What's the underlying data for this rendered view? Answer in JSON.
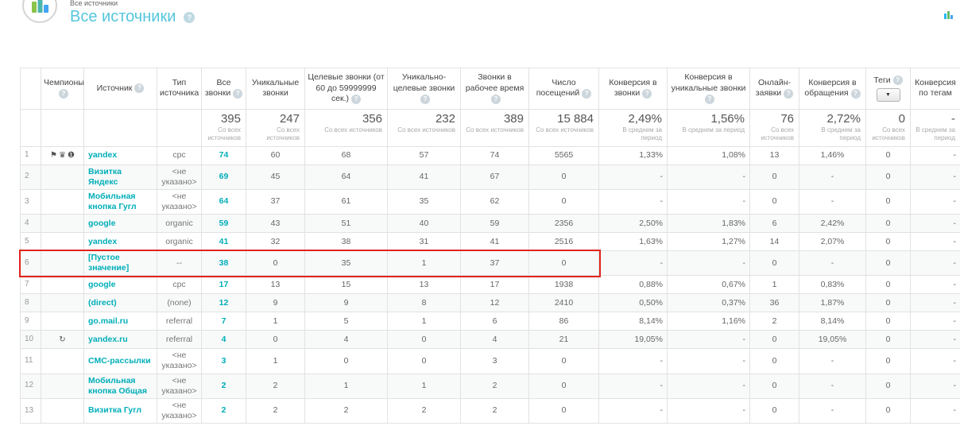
{
  "header": {
    "breadcrumb": "Все источники",
    "title": "Все источники"
  },
  "icons": {
    "help_glyph": "?",
    "dropdown_glyph": "▼",
    "glyphs": {
      "flag": "⚑",
      "crown": "♛",
      "medal-1": "❶",
      "refresh": "↻"
    }
  },
  "table": {
    "columns": [
      {
        "key": "num",
        "label": "",
        "help": false,
        "align": "left"
      },
      {
        "key": "champions",
        "label": "Чемпионы",
        "help": true,
        "align": "center"
      },
      {
        "key": "source",
        "label": "Источник",
        "help": true,
        "align": "left"
      },
      {
        "key": "source-type",
        "label": "Тип источника",
        "help": false,
        "align": "center"
      },
      {
        "key": "all-calls",
        "label": "Все звонки",
        "help": true,
        "align": "center",
        "link": true
      },
      {
        "key": "unique-calls",
        "label": "Уникальные звонки",
        "help": false,
        "align": "center"
      },
      {
        "key": "target-calls",
        "label": "Целевые звонки (от 60 до 59999999 сек.)",
        "help": true,
        "align": "center"
      },
      {
        "key": "unique-target-calls",
        "label": "Уникально-целевые звонки",
        "help": true,
        "align": "center"
      },
      {
        "key": "work-hours-calls",
        "label": "Звонки в рабочее время",
        "help": true,
        "align": "center"
      },
      {
        "key": "visits",
        "label": "Число посещений",
        "help": true,
        "align": "center"
      },
      {
        "key": "conversion-calls",
        "label": "Конверсия в звонки",
        "help": true,
        "align": "right"
      },
      {
        "key": "conversion-unique-calls",
        "label": "Конверсия в уникальные звонки",
        "help": true,
        "align": "right"
      },
      {
        "key": "online-requests",
        "label": "Онлайн-заявки",
        "help": true,
        "align": "center"
      },
      {
        "key": "conversion-appeals",
        "label": "Конверсия в обращения",
        "help": true,
        "align": "center"
      },
      {
        "key": "tags",
        "label": "Теги",
        "help": true,
        "dropdown": true,
        "align": "center"
      },
      {
        "key": "conversion-tags",
        "label": "Конверсия по тегам",
        "help": false,
        "align": "right"
      }
    ],
    "summary": [
      {
        "value": "",
        "sub": ""
      },
      {
        "value": "",
        "sub": ""
      },
      {
        "value": "",
        "sub": ""
      },
      {
        "value": "",
        "sub": ""
      },
      {
        "value": "395",
        "sub": "Со всех источников"
      },
      {
        "value": "247",
        "sub": "Со всех источников"
      },
      {
        "value": "356",
        "sub": "Со всех источников"
      },
      {
        "value": "232",
        "sub": "Со всех источников"
      },
      {
        "value": "389",
        "sub": "Со всех источников"
      },
      {
        "value": "15 884",
        "sub": "Со всех источников"
      },
      {
        "value": "2,49%",
        "sub": "В среднем за период"
      },
      {
        "value": "1,56%",
        "sub": "В среднем за период"
      },
      {
        "value": "76",
        "sub": "Со всех источников"
      },
      {
        "value": "2,72%",
        "sub": "В среднем за период"
      },
      {
        "value": "0",
        "sub": "Со всех источников"
      },
      {
        "value": "-",
        "sub": "В среднем за период"
      }
    ],
    "rows": [
      {
        "num": "1",
        "champions": [
          "flag",
          "crown",
          "medal-1"
        ],
        "source": "yandex",
        "type": "cpc",
        "values": [
          "74",
          "60",
          "68",
          "57",
          "74",
          "5565",
          "1,33%",
          "1,08%",
          "13",
          "1,46%",
          "0",
          "-"
        ],
        "highlighted": false
      },
      {
        "num": "2",
        "champions": [],
        "source": "Визитка Яндекс",
        "type": "<не указано>",
        "values": [
          "69",
          "45",
          "64",
          "41",
          "67",
          "0",
          "-",
          "-",
          "0",
          "-",
          "0",
          "-"
        ],
        "highlighted": false
      },
      {
        "num": "3",
        "champions": [],
        "source": "Мобильная кнопка Гугл",
        "type": "<не указано>",
        "values": [
          "64",
          "37",
          "61",
          "35",
          "62",
          "0",
          "-",
          "-",
          "0",
          "-",
          "0",
          "-"
        ],
        "highlighted": false
      },
      {
        "num": "4",
        "champions": [],
        "source": "google",
        "type": "organic",
        "values": [
          "59",
          "43",
          "51",
          "40",
          "59",
          "2356",
          "2,50%",
          "1,83%",
          "6",
          "2,42%",
          "0",
          "-"
        ],
        "highlighted": false
      },
      {
        "num": "5",
        "champions": [],
        "source": "yandex",
        "type": "organic",
        "values": [
          "41",
          "32",
          "38",
          "31",
          "41",
          "2516",
          "1,63%",
          "1,27%",
          "14",
          "2,07%",
          "0",
          "-"
        ],
        "highlighted": false
      },
      {
        "num": "6",
        "champions": [],
        "source": "[Пустое значение]",
        "type": "--",
        "values": [
          "38",
          "0",
          "35",
          "1",
          "37",
          "0",
          "-",
          "-",
          "0",
          "-",
          "0",
          "-"
        ],
        "highlighted": true
      },
      {
        "num": "7",
        "champions": [],
        "source": "google",
        "type": "cpc",
        "values": [
          "17",
          "13",
          "15",
          "13",
          "17",
          "1938",
          "0,88%",
          "0,67%",
          "1",
          "0,83%",
          "0",
          "-"
        ],
        "highlighted": false
      },
      {
        "num": "8",
        "champions": [],
        "source": "(direct)",
        "type": "(none)",
        "values": [
          "12",
          "9",
          "9",
          "8",
          "12",
          "2410",
          "0,50%",
          "0,37%",
          "36",
          "1,87%",
          "0",
          "-"
        ],
        "highlighted": false
      },
      {
        "num": "9",
        "champions": [],
        "source": "go.mail.ru",
        "type": "referral",
        "values": [
          "7",
          "1",
          "5",
          "1",
          "6",
          "86",
          "8,14%",
          "1,16%",
          "2",
          "8,14%",
          "0",
          "-"
        ],
        "highlighted": false
      },
      {
        "num": "10",
        "champions": [
          "refresh"
        ],
        "source": "yandex.ru",
        "type": "referral",
        "values": [
          "4",
          "0",
          "4",
          "0",
          "4",
          "21",
          "19,05%",
          "-",
          "0",
          "19,05%",
          "0",
          "-"
        ],
        "highlighted": false
      },
      {
        "num": "11",
        "champions": [],
        "source": "СМС-рассылки",
        "type": "<не указано>",
        "values": [
          "3",
          "1",
          "0",
          "0",
          "3",
          "0",
          "-",
          "-",
          "0",
          "-",
          "0",
          "-"
        ],
        "highlighted": false
      },
      {
        "num": "12",
        "champions": [],
        "source": "Мобильная кнопка Общая",
        "type": "<не указано>",
        "values": [
          "2",
          "2",
          "1",
          "1",
          "2",
          "0",
          "-",
          "-",
          "0",
          "-",
          "0",
          "-"
        ],
        "highlighted": false
      },
      {
        "num": "13",
        "champions": [],
        "source": "Визитка Гугл",
        "type": "<не указано>",
        "values": [
          "2",
          "2",
          "2",
          "2",
          "2",
          "0",
          "-",
          "-",
          "0",
          "-",
          "0",
          "-"
        ],
        "highlighted": false
      }
    ]
  }
}
